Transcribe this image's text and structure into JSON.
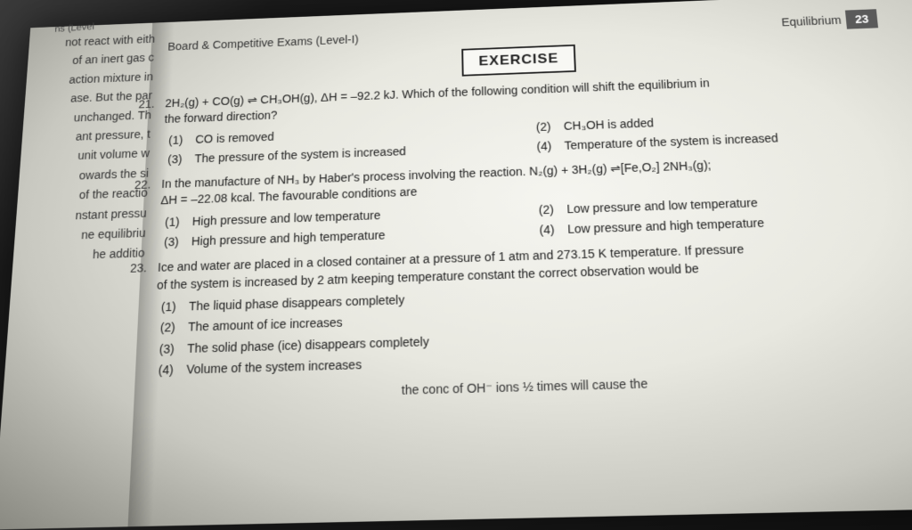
{
  "top_corner": "ns (Level",
  "left_margin": [
    "not react with eith",
    "of an inert gas c",
    "",
    "action mixture in",
    "ase. But the par",
    "unchanged. Th",
    "",
    "ant pressure, t",
    "unit volume w",
    "owards the si",
    "of the reactio",
    "nstant pressu",
    "",
    "",
    "ne equilibriu",
    "",
    "",
    "",
    "he additio"
  ],
  "header": {
    "left": "Board & Competitive Exams (Level-I)",
    "right_label": "Equilibrium",
    "page_number": "23"
  },
  "exercise_label": "EXERCISE",
  "q21": {
    "num": "21.",
    "stem_a": "2H₂(g) + CO(g) ⇌ CH₃OH(g), ΔH = –92.2 kJ. Which of the following condition will shift the equilibrium in",
    "stem_b": "the forward direction?",
    "opts": {
      "o1n": "(1)",
      "o1": "CO is removed",
      "o2n": "(2)",
      "o2": "CH₃OH is added",
      "o3n": "(3)",
      "o3": "The pressure of the system is increased",
      "o4n": "(4)",
      "o4": "Temperature of the system is increased"
    }
  },
  "q22": {
    "num": "22.",
    "stem_a": "In the manufacture of NH₃ by Haber's process involving the reaction.  N₂(g) + 3H₂(g) ⇌[Fe,O₂] 2NH₃(g);",
    "stem_b": "ΔH = –22.08 kcal. The favourable conditions are",
    "opts": {
      "o1n": "(1)",
      "o1": "High pressure and low temperature",
      "o2n": "(2)",
      "o2": "Low pressure and low temperature",
      "o3n": "(3)",
      "o3": "High pressure and high temperature",
      "o4n": "(4)",
      "o4": "Low pressure and high temperature"
    }
  },
  "q23": {
    "num": "23.",
    "stem_a": "Ice and water are placed in a closed container at a pressure of 1 atm and 273.15 K temperature. If pressure",
    "stem_b": "of the system is increased by 2 atm keeping temperature constant the correct observation would be",
    "opts": {
      "o1n": "(1)",
      "o1": "The liquid phase disappears completely",
      "o2n": "(2)",
      "o2": "The amount of ice increases",
      "o3n": "(3)",
      "o3": "The solid phase (ice) disappears completely",
      "o4n": "(4)",
      "o4": "Volume of the system increases"
    }
  },
  "bottom_cut": "the conc of OH⁻ ions ½ times will cause the"
}
